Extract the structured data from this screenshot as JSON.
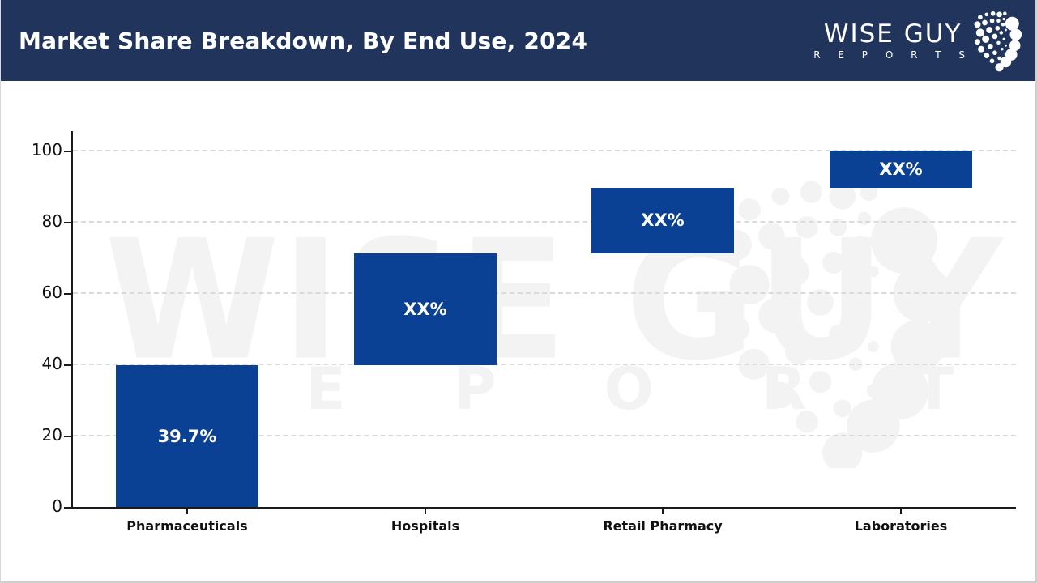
{
  "header": {
    "title": "Market Share Breakdown, By End Use, 2024",
    "bg_color": "#21355c",
    "logo": {
      "wordmark": "WISE GUY",
      "subtitle": "R E P O R T S"
    }
  },
  "watermark": {
    "wordmark": "WISE GUY",
    "subtitle": "R E P O R T S"
  },
  "chart_data": {
    "type": "bar",
    "subtype": "waterfall",
    "title": "Market Share Breakdown, By End Use, 2024",
    "xlabel": "",
    "ylabel": "",
    "categories": [
      "Pharmaceuticals",
      "Hospitals",
      "Retail Pharmacy",
      "Laboratories"
    ],
    "segments": [
      {
        "category": "Pharmaceuticals",
        "start": 0,
        "end": 39.7,
        "label": "39.7%"
      },
      {
        "category": "Hospitals",
        "start": 39.7,
        "end": 71.0,
        "label": "XX%"
      },
      {
        "category": "Retail Pharmacy",
        "start": 71.0,
        "end": 89.5,
        "label": "XX%"
      },
      {
        "category": "Laboratories",
        "start": 89.5,
        "end": 99.8,
        "label": "XX%"
      }
    ],
    "yticks": [
      0,
      20,
      40,
      60,
      80,
      100
    ],
    "ylim": [
      0,
      105
    ],
    "grid": "horizontal-dashed",
    "legend": "none",
    "bar_color": "#0a4194",
    "bar_label_color": "#ffffff",
    "axis_color": "#1a1a1a",
    "gridline_color": "#dadada"
  }
}
